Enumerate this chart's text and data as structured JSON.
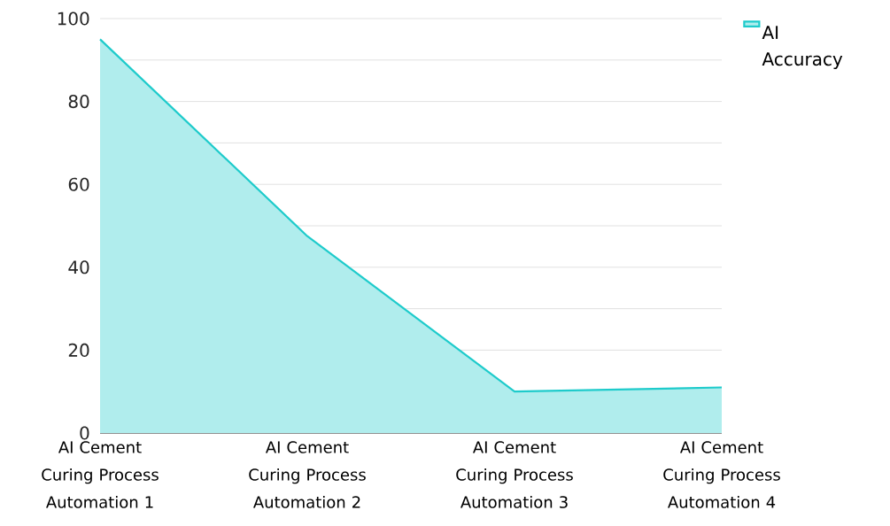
{
  "chart_data": {
    "type": "area",
    "categories": [
      "AI Cement Curing Process Automation 1",
      "AI Cement Curing Process Automation 2",
      "AI Cement Curing Process Automation 3",
      "AI Cement Curing Process Automation 4"
    ],
    "series": [
      {
        "name": "AI Accuracy",
        "color": "#1ecbcb",
        "values": [
          95,
          47.5,
          10,
          11
        ]
      }
    ],
    "ylim": [
      0,
      100
    ],
    "yticks": [
      0,
      {
        "value": 10,
        "label": null
      },
      20,
      {
        "value": 30,
        "label": null
      },
      40,
      {
        "value": 50,
        "label": null
      },
      60,
      {
        "value": 70,
        "label": null
      },
      80,
      {
        "value": 90,
        "label": null
      },
      100
    ],
    "grid": "y",
    "legend": "top right",
    "marker": "none"
  }
}
